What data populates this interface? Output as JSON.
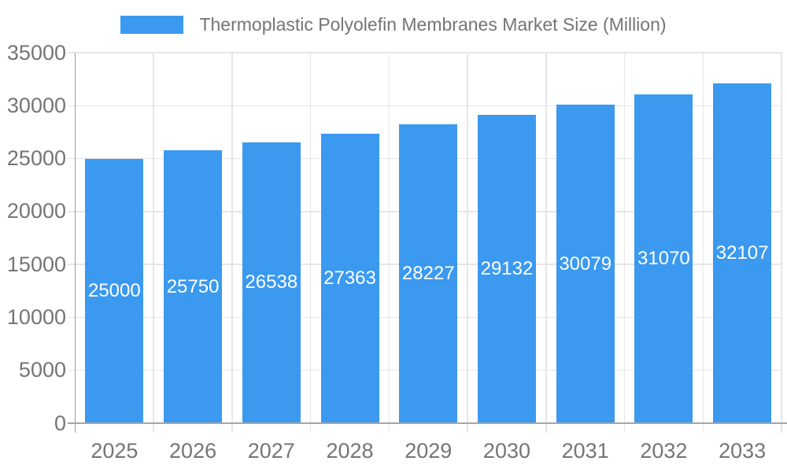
{
  "chart_data": {
    "type": "bar",
    "title": "Thermoplastic Polyolefin Membranes Market Size (Million)",
    "categories": [
      "2025",
      "2026",
      "2027",
      "2028",
      "2029",
      "2030",
      "2031",
      "2032",
      "2033"
    ],
    "series": [
      {
        "name": "Thermoplastic Polyolefin Membranes Market Size (Million)",
        "values": [
          25000,
          25750,
          26538,
          27363,
          28227,
          29132,
          30079,
          31070,
          32107
        ]
      }
    ],
    "value_labels": [
      "25000",
      "25750",
      "26538",
      "27363",
      "28227",
      "29132",
      "30079",
      "31070",
      "32107"
    ],
    "xlabel": "",
    "ylabel": "",
    "ylim": [
      0,
      35000
    ],
    "yticks": [
      0,
      5000,
      10000,
      15000,
      20000,
      25000,
      30000,
      35000
    ],
    "ytick_labels": [
      "0",
      "5000",
      "10000",
      "15000",
      "20000",
      "25000",
      "30000",
      "35000"
    ],
    "grid": true,
    "legend_position": "top",
    "colors": {
      "bar": "#3b99f0",
      "value_label": "#ffffff",
      "axis_text": "#757575",
      "legend_text": "#757575",
      "grid": "#e6e6e6",
      "axis_line": "#9b9b9b",
      "baseline": "#a6a6a6",
      "background": "#ffffff"
    }
  }
}
